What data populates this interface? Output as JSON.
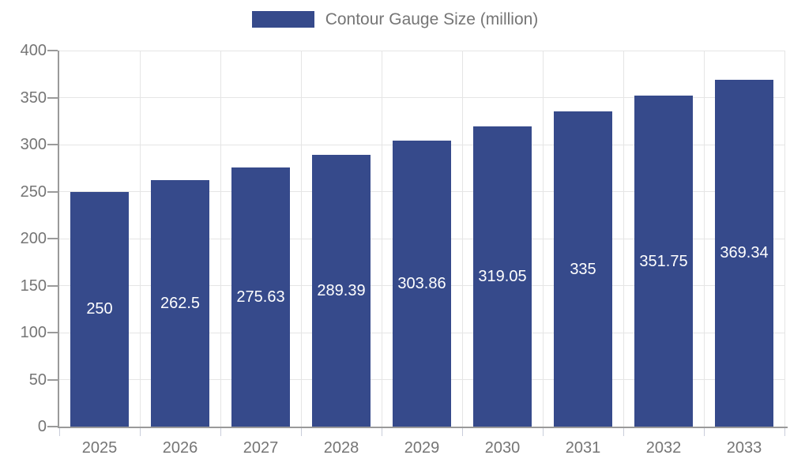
{
  "legend": {
    "label": "Contour Gauge Size (million)"
  },
  "colors": {
    "bar": "#364a8b",
    "grid": "#e5e5e5",
    "axis": "#9a9a9a",
    "minor_tick": "#c9cdda",
    "axis_label": "#757575",
    "value_label": "#ffffff",
    "background": "#ffffff"
  },
  "chart_data": {
    "type": "bar",
    "title": "Contour Gauge Size (million)",
    "categories": [
      "2025",
      "2026",
      "2027",
      "2028",
      "2029",
      "2030",
      "2031",
      "2032",
      "2033"
    ],
    "values": [
      250,
      262.5,
      275.63,
      289.39,
      303.86,
      319.05,
      335,
      351.75,
      369.34
    ],
    "value_labels": [
      "250",
      "262.5",
      "275.63",
      "289.39",
      "303.86",
      "319.05",
      "335",
      "351.75",
      "369.34"
    ],
    "xlabel": "",
    "ylabel": "",
    "ylim": [
      0,
      400
    ],
    "yticks": [
      0,
      50,
      100,
      150,
      200,
      250,
      300,
      350,
      400
    ],
    "grid": true,
    "legend_position": "top-center",
    "value_label_position": "inside-center"
  }
}
